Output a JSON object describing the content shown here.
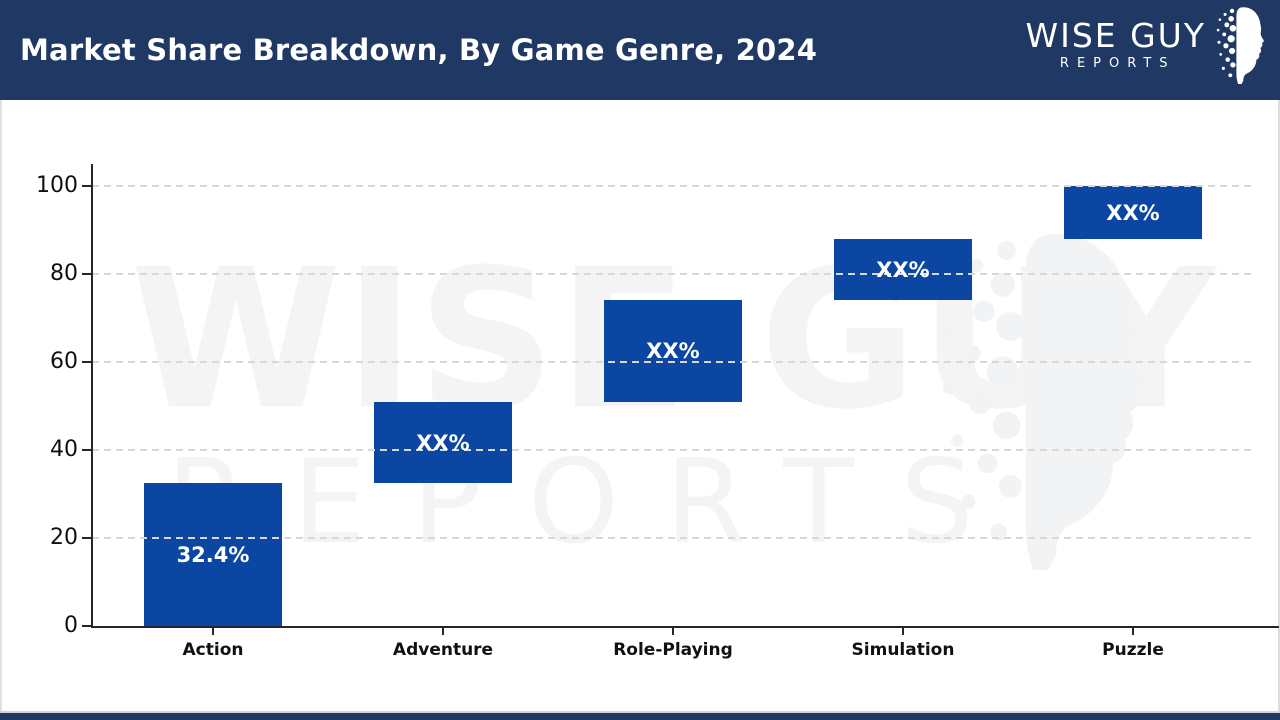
{
  "header": {
    "title": "Market Share Breakdown, By Game Genre, 2024",
    "logo": {
      "line1": "WISE GUY",
      "line2": "REPORTS"
    }
  },
  "watermark": {
    "line1": "WISE GUY",
    "line2": "REPORTS"
  },
  "chart_data": {
    "type": "bar",
    "subtype": "waterfall",
    "title": "Market Share Breakdown, By Game Genre, 2024",
    "categories": [
      "Action",
      "Adventure",
      "Role-Playing",
      "Simulation",
      "Puzzle"
    ],
    "bars": [
      {
        "category": "Action",
        "start": 0,
        "end": 32.4,
        "label": "32.4%"
      },
      {
        "category": "Adventure",
        "start": 32.4,
        "end": 50.9,
        "label": "XX%"
      },
      {
        "category": "Role-Playing",
        "start": 50.9,
        "end": 74.1,
        "label": "XX%"
      },
      {
        "category": "Simulation",
        "start": 74.1,
        "end": 87.9,
        "label": "XX%"
      },
      {
        "category": "Puzzle",
        "start": 87.9,
        "end": 100,
        "label": "XX%"
      }
    ],
    "yticks": [
      0,
      20,
      40,
      60,
      80,
      100
    ],
    "ylim": [
      0,
      105
    ],
    "xlabel": "",
    "ylabel": "",
    "grid": "horizontal-dashed",
    "legend": "none",
    "bar_color": "#0a46a2"
  },
  "colors": {
    "header_bg": "#1f3864",
    "footer_bg": "#1f3864",
    "bar": "#0a46a2",
    "grid": "#d9d9d9",
    "axis": "#262626",
    "watermark": "#f4f4f5"
  }
}
